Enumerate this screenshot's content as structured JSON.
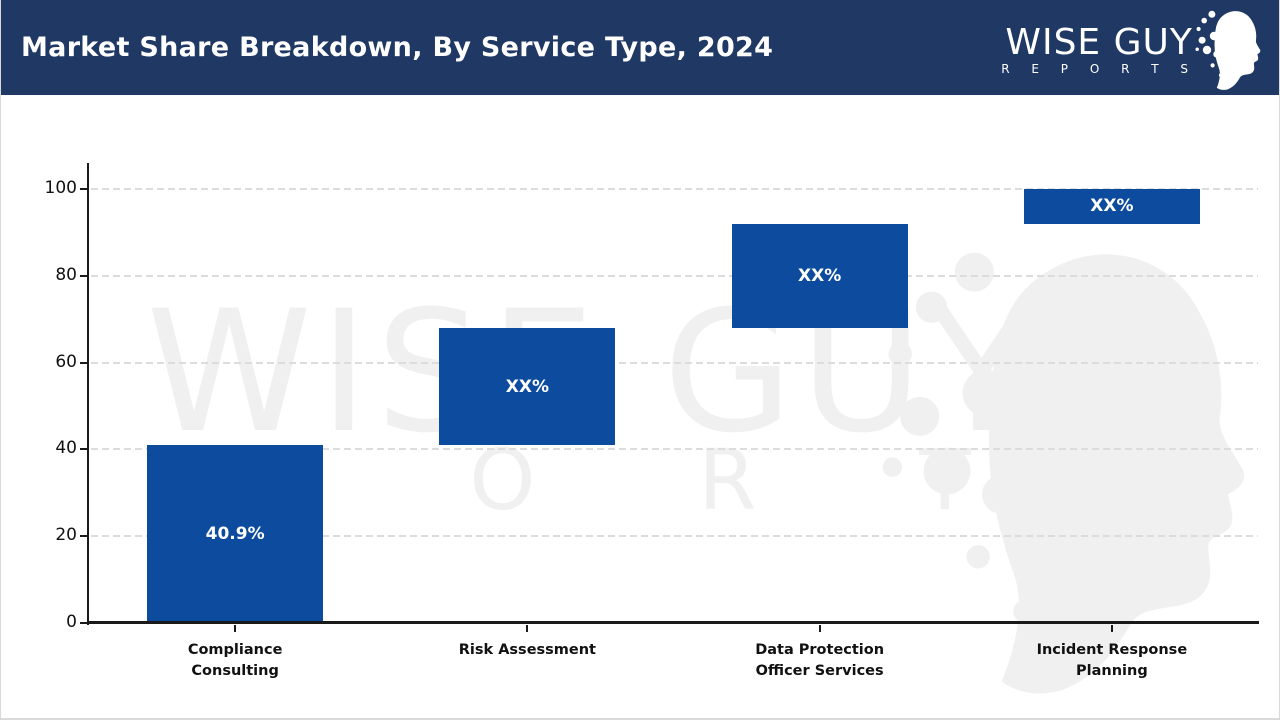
{
  "header": {
    "title": "Market Share Breakdown, By Service Type, 2024",
    "logo": {
      "line1": "WISE GUY",
      "line2": "R E P O R T S"
    }
  },
  "watermark": {
    "line1": "WISE GUY",
    "line2": "P O R T S"
  },
  "chart_data": {
    "type": "bar",
    "variant": "waterfall",
    "title": "Market Share Breakdown, By Service Type, 2024",
    "categories": [
      "Compliance\nConsulting",
      "Risk Assessment",
      "Data Protection\nOfficer Services",
      "Incident Response\nPlanning"
    ],
    "segments": [
      {
        "category": "Compliance Consulting",
        "start": 0,
        "end": 40.9,
        "label": "40.9%"
      },
      {
        "category": "Risk Assessment",
        "start": 40.9,
        "end": 68,
        "label": "XX%"
      },
      {
        "category": "Data Protection Officer Services",
        "start": 68,
        "end": 92,
        "label": "XX%"
      },
      {
        "category": "Incident Response Planning",
        "start": 92,
        "end": 100,
        "label": "XX%"
      }
    ],
    "ylim": [
      0,
      100
    ],
    "yticks": [
      0,
      20,
      40,
      60,
      80,
      100
    ],
    "grid": "horizontal-dashed",
    "legend": "none",
    "bar_color": "#0d4b9e",
    "bar_label_color": "#ffffff"
  },
  "colors": {
    "header_bg": "#1f3864",
    "bar": "#0d4b9e",
    "gridline": "#dcdcdc",
    "watermark": "#f0f0f1",
    "axis": "#1a1a1a",
    "page_border": "#d9d9d9"
  }
}
